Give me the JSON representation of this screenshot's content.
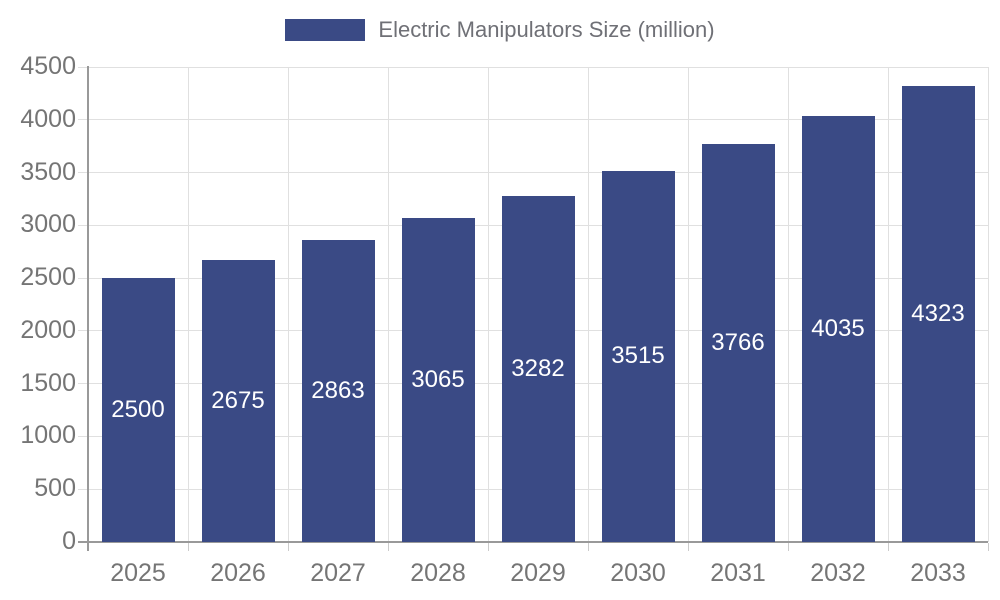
{
  "legend": {
    "label": "Electric Manipulators Size (million)"
  },
  "colors": {
    "bar": "#3A4A85",
    "grid": "#E0E0E0",
    "axis": "#999999",
    "tick": "#CCCCCC",
    "axis_text": "#757575",
    "legend_text": "#6F7076",
    "bar_label_text": "#FFFFFF",
    "background": "#FFFFFF"
  },
  "chart_data": {
    "type": "bar",
    "title": "Electric Manipulators Size (million)",
    "categories": [
      "2025",
      "2026",
      "2027",
      "2028",
      "2029",
      "2030",
      "2031",
      "2032",
      "2033"
    ],
    "values": [
      2500,
      2675,
      2863,
      3065,
      3282,
      3515,
      3766,
      4035,
      4323
    ],
    "xlabel": "",
    "ylabel": "",
    "ylim": [
      0,
      4500
    ],
    "ytick_step": 500,
    "ytick_labels": [
      "0",
      "500",
      "1000",
      "1500",
      "2000",
      "2500",
      "3000",
      "3500",
      "4000",
      "4500"
    ],
    "grid": true,
    "legend_position": "top-center",
    "bar_label_position": "inside-middle"
  }
}
